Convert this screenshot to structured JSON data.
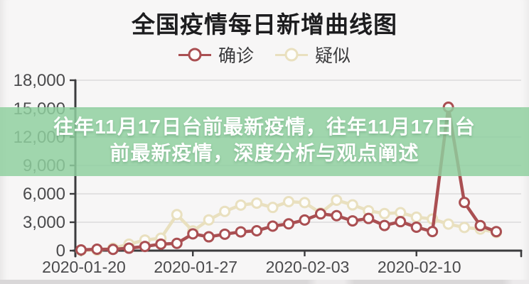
{
  "banner": {
    "lines": [
      "往年11月17日台前最新疫情，往年11月17日台",
      "前最新疫情，深度分析与观点阐述"
    ],
    "bg_color": "#8fcf9f",
    "text_color": "#ffffff"
  },
  "chart_data": {
    "type": "line",
    "title": "全国疫情每日新增曲线图",
    "legend_position": "top",
    "grid": true,
    "ylim": [
      0,
      18000
    ],
    "y_ticks": [
      0,
      3000,
      6000,
      9000,
      12000,
      15000,
      18000
    ],
    "x": [
      "2020-01-20",
      "2020-01-21",
      "2020-01-22",
      "2020-01-23",
      "2020-01-24",
      "2020-01-25",
      "2020-01-26",
      "2020-01-27",
      "2020-01-28",
      "2020-01-29",
      "2020-01-30",
      "2020-01-31",
      "2020-02-01",
      "2020-02-02",
      "2020-02-03",
      "2020-02-04",
      "2020-02-05",
      "2020-02-06",
      "2020-02-07",
      "2020-02-08",
      "2020-02-09",
      "2020-02-10",
      "2020-02-11",
      "2020-02-12",
      "2020-02-13",
      "2020-02-14",
      "2020-02-15"
    ],
    "x_tick_indices": [
      0,
      7,
      14,
      21
    ],
    "x_tick_labels": [
      "2020-01-20",
      "2020-01-27",
      "2020-02-03",
      "2020-02-10"
    ],
    "series": [
      {
        "name": "确诊",
        "color": "#aa4f52",
        "marker_fill": "#fdfdfc",
        "values": [
          77,
          149,
          131,
          259,
          444,
          688,
          769,
          1771,
          1459,
          1737,
          1982,
          2102,
          2590,
          2829,
          3235,
          3887,
          3694,
          3143,
          3399,
          2656,
          3062,
          2478,
          2015,
          15152,
          5090,
          2641,
          2009
        ]
      },
      {
        "name": "疑似",
        "color": "#e9e0bf",
        "marker_fill": "#fdfdfc",
        "values": [
          27,
          53,
          257,
          680,
          1118,
          1309,
          3806,
          2077,
          3248,
          4148,
          4812,
          5019,
          4562,
          5173,
          5072,
          3971,
          5328,
          4833,
          4214,
          3916,
          4008,
          3536,
          3342,
          2807,
          2450,
          2277,
          1918
        ]
      }
    ],
    "axis_color": "#3b3b3d",
    "grid_color": "#dbdadc",
    "label_color": "#4a4a4c"
  }
}
